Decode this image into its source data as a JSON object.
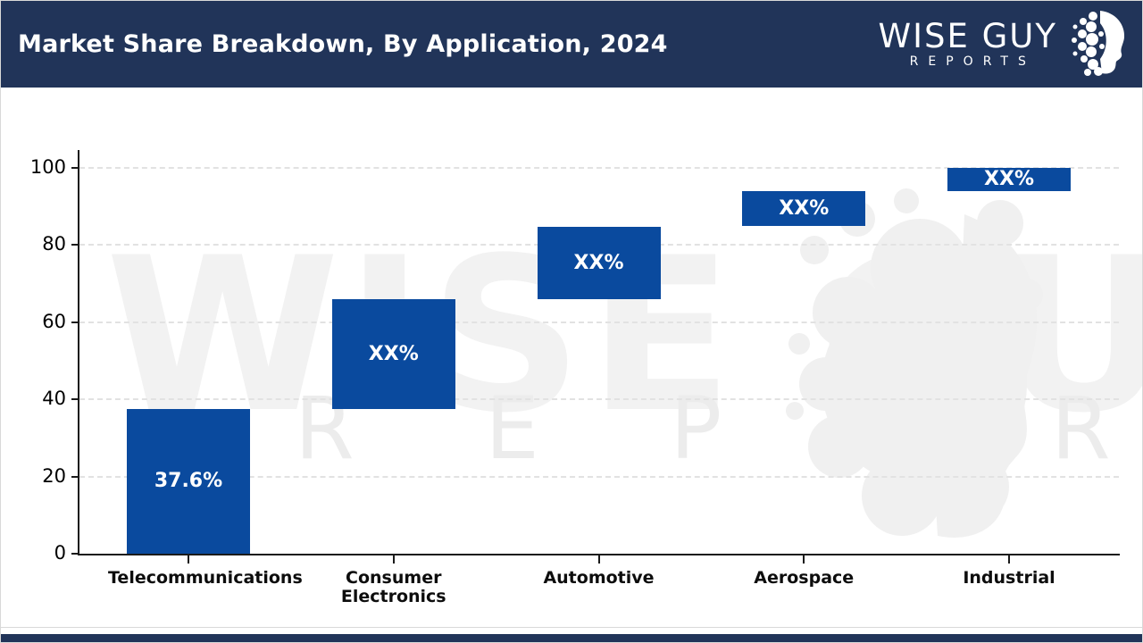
{
  "header": {
    "title": "Market Share Breakdown, By Application, 2024",
    "bg_color": "#213459",
    "logo": {
      "line1": "WISE GUY",
      "line2": "REPORTS",
      "head_icon": "dotted-head-profile"
    }
  },
  "watermark": {
    "line1": "WISE GU",
    "line2": "R E P O R T S"
  },
  "footer": {
    "bg_color": "#213459"
  },
  "chart_data": {
    "type": "bar",
    "subtype": "waterfall",
    "title": "Market Share Breakdown, By Application, 2024",
    "categories": [
      "Telecommunications",
      "Consumer Electronics",
      "Automotive",
      "Aerospace",
      "Industrial"
    ],
    "segments": [
      {
        "category": "Telecommunications",
        "start": 0,
        "end": 37.6,
        "label": "37.6%"
      },
      {
        "category": "Consumer Electronics",
        "start": 37.6,
        "end": 66,
        "label": "XX%"
      },
      {
        "category": "Automotive",
        "start": 66,
        "end": 84.7,
        "label": "XX%"
      },
      {
        "category": "Aerospace",
        "start": 85,
        "end": 94,
        "label": "XX%"
      },
      {
        "category": "Industrial",
        "start": 94,
        "end": 100,
        "label": "XX%"
      }
    ],
    "y_ticks": [
      0,
      20,
      40,
      60,
      80,
      100
    ],
    "ylim": [
      0,
      105
    ],
    "xlabel": "",
    "ylabel": "",
    "bar_color": "#0a4a9e",
    "bar_label_color": "#ffffff",
    "grid": "horizontal-dashed",
    "legend": "none"
  }
}
